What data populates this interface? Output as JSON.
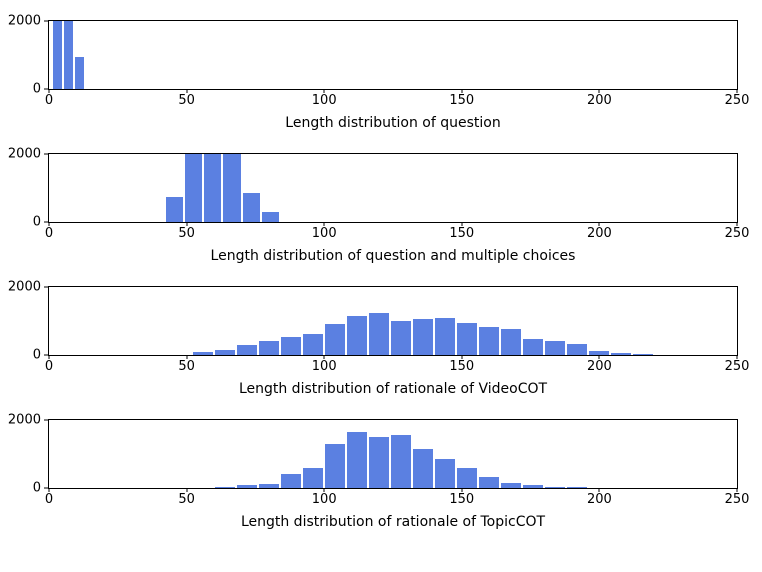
{
  "figure": {
    "background": "#ffffff",
    "bar_color": "#5b80e1",
    "axis_color": "#000000"
  },
  "chart_data": [
    {
      "type": "bar",
      "title": "Length distribution of question",
      "xlabel": "Length distribution of question",
      "ylabel": "",
      "xlim": [
        0,
        250
      ],
      "ylim": [
        0,
        2000
      ],
      "xticks": [
        0,
        50,
        100,
        150,
        200,
        250
      ],
      "yticks": [
        0,
        2000
      ],
      "grid": false,
      "legend": "none",
      "bin_width": 4,
      "bins": [
        {
          "start": 1,
          "count": 2000
        },
        {
          "start": 5,
          "count": 2000
        },
        {
          "start": 9,
          "count": 950
        }
      ]
    },
    {
      "type": "bar",
      "title": "Length distribution of question and multiple choices",
      "xlabel": "Length distribution of question and multiple choices",
      "ylabel": "",
      "xlim": [
        0,
        250
      ],
      "ylim": [
        0,
        2000
      ],
      "xticks": [
        0,
        50,
        100,
        150,
        200,
        250
      ],
      "yticks": [
        0,
        2000
      ],
      "grid": false,
      "legend": "none",
      "bin_width": 7,
      "bins": [
        {
          "start": 42,
          "count": 750
        },
        {
          "start": 49,
          "count": 2000
        },
        {
          "start": 56,
          "count": 2000
        },
        {
          "start": 63,
          "count": 2000
        },
        {
          "start": 70,
          "count": 850
        },
        {
          "start": 77,
          "count": 280
        }
      ]
    },
    {
      "type": "bar",
      "title": "Length distribution of rationale of VideoCOT",
      "xlabel": "Length distribution of rationale of VideoCOT",
      "ylabel": "",
      "xlim": [
        0,
        250
      ],
      "ylim": [
        0,
        2000
      ],
      "xticks": [
        0,
        50,
        100,
        150,
        200,
        250
      ],
      "yticks": [
        0,
        2000
      ],
      "grid": false,
      "legend": "none",
      "bin_width": 8,
      "bins": [
        {
          "start": 52,
          "count": 100
        },
        {
          "start": 60,
          "count": 160
        },
        {
          "start": 68,
          "count": 280
        },
        {
          "start": 76,
          "count": 420
        },
        {
          "start": 84,
          "count": 540
        },
        {
          "start": 92,
          "count": 620
        },
        {
          "start": 100,
          "count": 900
        },
        {
          "start": 108,
          "count": 1150
        },
        {
          "start": 116,
          "count": 1230
        },
        {
          "start": 124,
          "count": 1000
        },
        {
          "start": 132,
          "count": 1060
        },
        {
          "start": 140,
          "count": 1100
        },
        {
          "start": 148,
          "count": 930
        },
        {
          "start": 156,
          "count": 820
        },
        {
          "start": 164,
          "count": 760
        },
        {
          "start": 172,
          "count": 470
        },
        {
          "start": 180,
          "count": 400
        },
        {
          "start": 188,
          "count": 310
        },
        {
          "start": 196,
          "count": 130
        },
        {
          "start": 204,
          "count": 60
        },
        {
          "start": 212,
          "count": 30
        }
      ]
    },
    {
      "type": "bar",
      "title": "Length distribution of rationale of TopicCOT",
      "xlabel": "Length distribution of rationale of TopicCOT",
      "ylabel": "",
      "xlim": [
        0,
        250
      ],
      "ylim": [
        0,
        2000
      ],
      "xticks": [
        0,
        50,
        100,
        150,
        200,
        250
      ],
      "yticks": [
        0,
        2000
      ],
      "grid": false,
      "legend": "none",
      "bin_width": 8,
      "bins": [
        {
          "start": 60,
          "count": 30
        },
        {
          "start": 68,
          "count": 80
        },
        {
          "start": 76,
          "count": 130
        },
        {
          "start": 84,
          "count": 420
        },
        {
          "start": 92,
          "count": 600
        },
        {
          "start": 100,
          "count": 1300
        },
        {
          "start": 108,
          "count": 1650
        },
        {
          "start": 116,
          "count": 1500
        },
        {
          "start": 124,
          "count": 1550
        },
        {
          "start": 132,
          "count": 1150
        },
        {
          "start": 140,
          "count": 850
        },
        {
          "start": 148,
          "count": 600
        },
        {
          "start": 156,
          "count": 330
        },
        {
          "start": 164,
          "count": 160
        },
        {
          "start": 172,
          "count": 80
        },
        {
          "start": 180,
          "count": 40
        },
        {
          "start": 188,
          "count": 30
        }
      ]
    }
  ]
}
